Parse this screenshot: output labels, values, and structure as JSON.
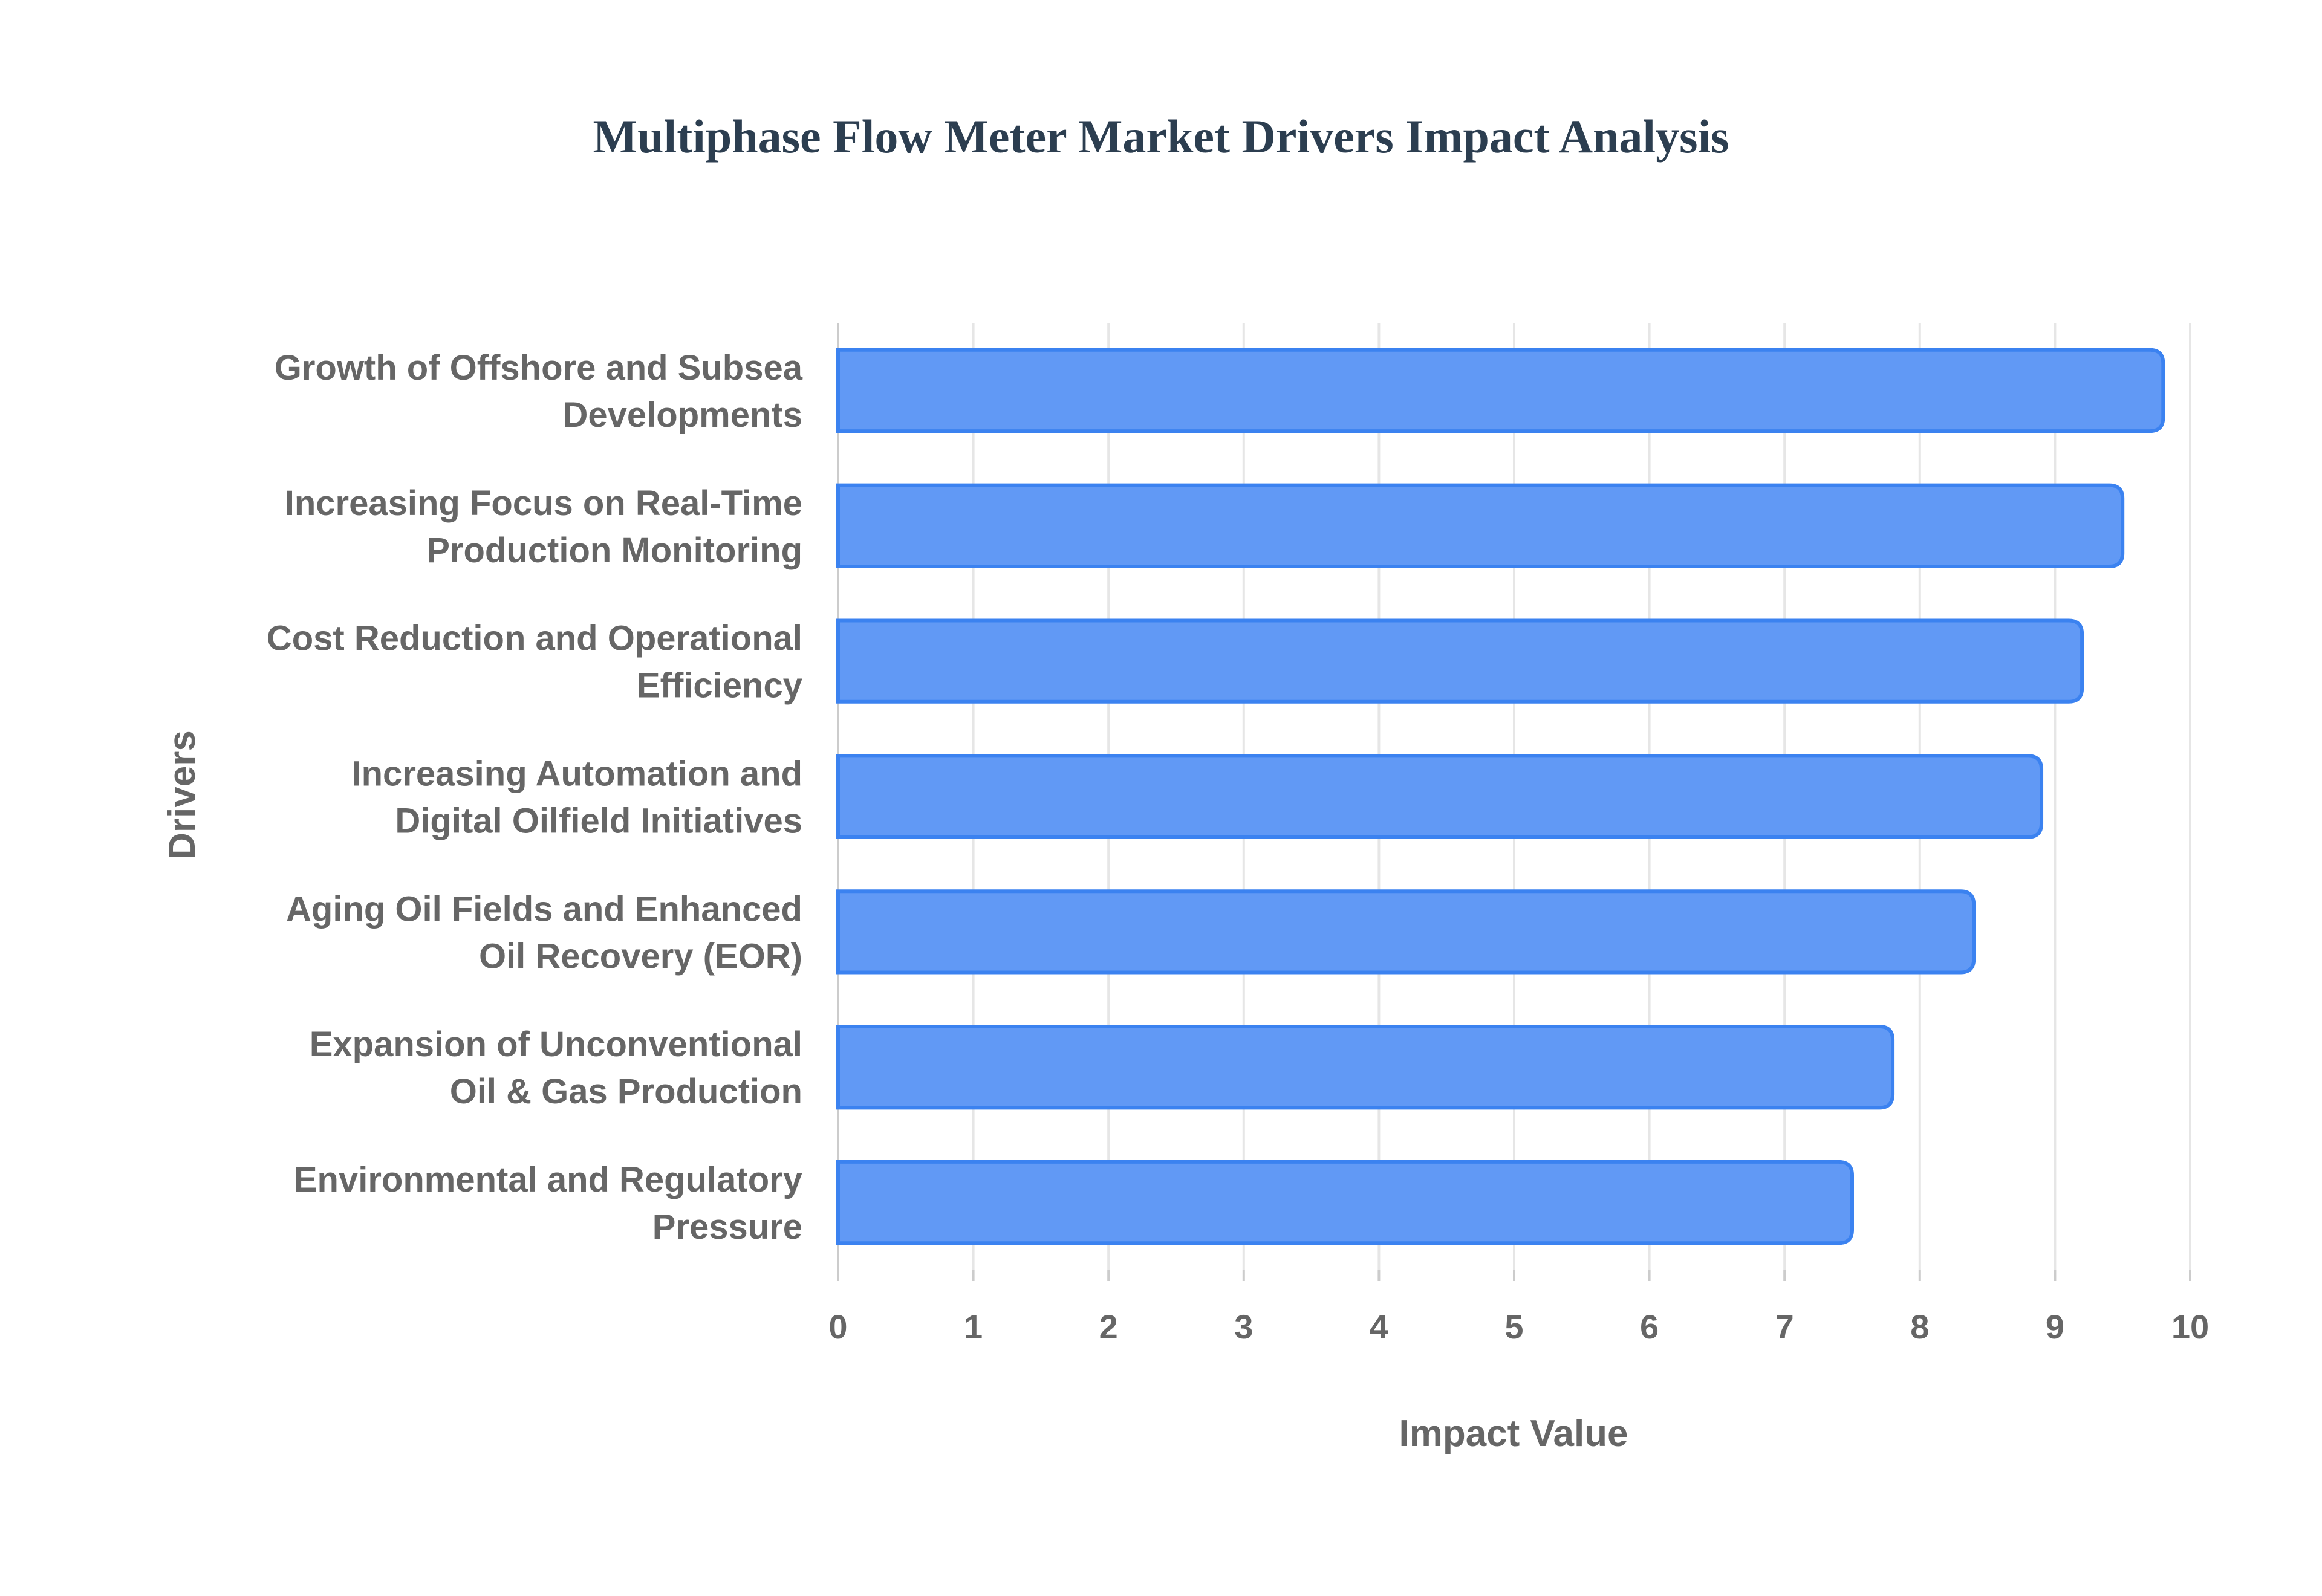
{
  "chart_data": {
    "type": "bar",
    "orientation": "horizontal",
    "title": "Multiphase Flow Meter Market Drivers Impact Analysis",
    "xlabel": "Impact Value",
    "ylabel": "Drivers",
    "xlim": [
      0,
      10
    ],
    "xticks": [
      "0",
      "1",
      "2",
      "3",
      "4",
      "5",
      "6",
      "7",
      "8",
      "9",
      "10"
    ],
    "grid": true,
    "categories": [
      [
        "Growth of Offshore and Subsea",
        "Developments"
      ],
      [
        "Increasing Focus on Real-Time",
        "Production Monitoring"
      ],
      [
        "Cost Reduction and Operational",
        "Efficiency"
      ],
      [
        "Increasing Automation and",
        "Digital Oilfield Initiatives"
      ],
      [
        "Aging Oil Fields and Enhanced",
        "Oil Recovery (EOR)"
      ],
      [
        "Expansion of Unconventional",
        "Oil & Gas Production"
      ],
      [
        "Environmental and Regulatory",
        "Pressure"
      ]
    ],
    "values": [
      9.8,
      9.5,
      9.2,
      8.9,
      8.4,
      7.8,
      7.5
    ],
    "colors": {
      "fill": "#6199f5",
      "stroke": "#3b82f0",
      "grid": "#e6e6e6"
    }
  }
}
